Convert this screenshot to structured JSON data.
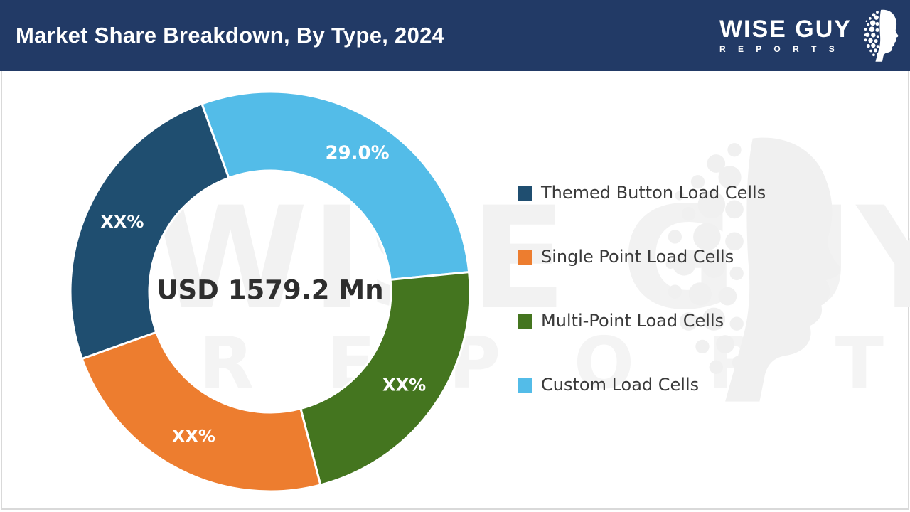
{
  "header": {
    "title": "Market Share Breakdown, By Type, 2024",
    "logo": {
      "line1": "WISE GUY",
      "line2": "R E P O R T S"
    }
  },
  "watermark": {
    "line1": "WISE GUY",
    "line2": "R E P O R T S"
  },
  "chart_data": {
    "type": "pie",
    "subtype": "donut",
    "title": "Market Share Breakdown, By Type, 2024",
    "center_label": "USD 1579.2 Mn",
    "start_angle_deg": -20,
    "legend_position": "right",
    "slices": [
      {
        "name": "Custom Load Cells",
        "label": "29.0%",
        "value_pct": 29.0,
        "color": "#53BCE8"
      },
      {
        "name": "Multi-Point Load Cells",
        "label": "XX%",
        "value_pct": 22.5,
        "color": "#44751F"
      },
      {
        "name": "Single Point Load Cells",
        "label": "XX%",
        "value_pct": 23.6,
        "color": "#ED7D2F"
      },
      {
        "name": "Themed Button Load Cells",
        "label": "XX%",
        "value_pct": 24.9,
        "color": "#1F4E70"
      }
    ],
    "legend": [
      {
        "label": "Themed Button Load Cells",
        "color": "#1F4E70"
      },
      {
        "label": "Single Point Load Cells",
        "color": "#ED7D2F"
      },
      {
        "label": "Multi-Point Load Cells",
        "color": "#44751F"
      },
      {
        "label": "Custom Load Cells",
        "color": "#53BCE8"
      }
    ]
  },
  "colors": {
    "header_bg": "#223A66",
    "body_bg": "#FFFFFF",
    "frame_border": "#D9D9D9",
    "center_text": "#2E2E2E",
    "legend_text": "#3A3A3A",
    "watermark": "#F2F2F2",
    "slice_divider": "#FFFFFF"
  }
}
